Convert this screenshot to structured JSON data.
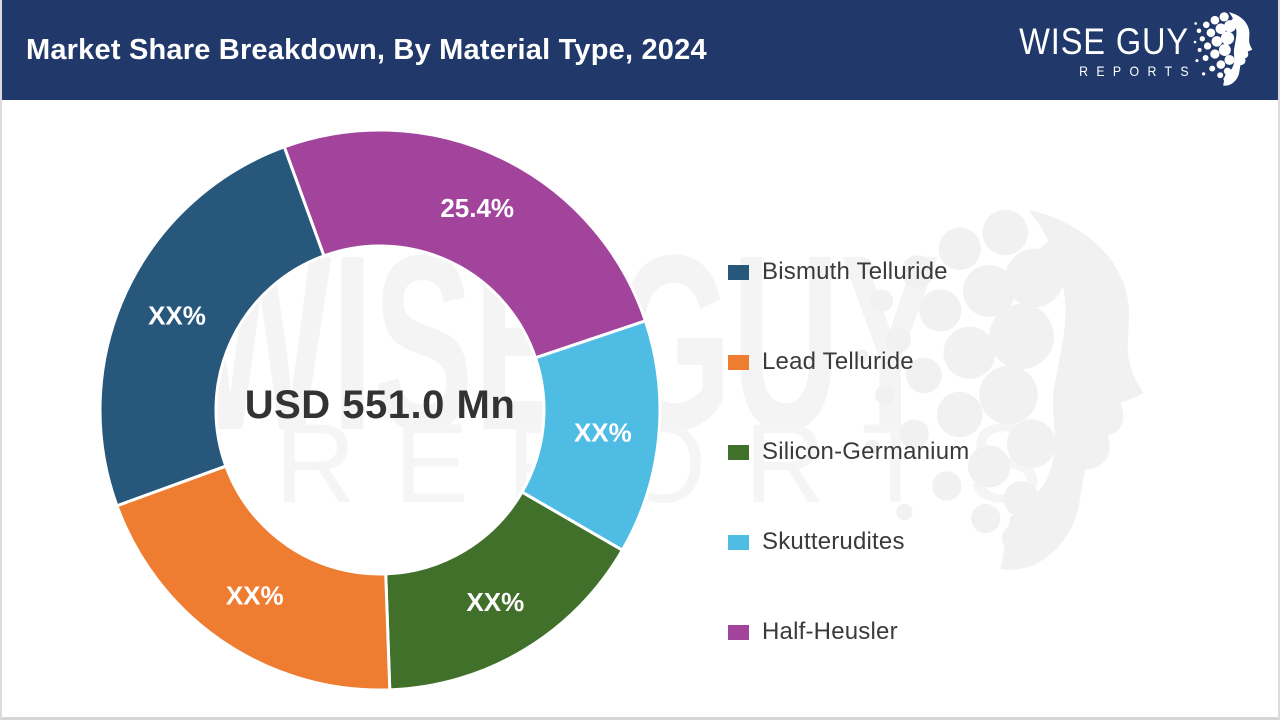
{
  "header": {
    "title": "Market Share Breakdown, By Material Type, 2024",
    "logo": {
      "name_top": "WISE GUY",
      "name_bottom": "REPORTS"
    }
  },
  "watermark": {
    "line1": "WISE GUY",
    "line2": "REPORTS"
  },
  "colors": {
    "header_bg": "#21386B",
    "border": "#D9D9D9",
    "center_text": "#333333",
    "legend_text": "#3A3A3A",
    "watermark": "#F4F4F4"
  },
  "chart_data": {
    "type": "pie",
    "variant": "donut",
    "title": "Market Share Breakdown, By Material Type, 2024",
    "center_label": "USD 551.0 Mn",
    "start_angle_deg": -20,
    "unit": "percent",
    "legend_position": "right",
    "segments": [
      {
        "label": "Half-Heusler",
        "value": 25.4,
        "display": "25.4%",
        "color": "#A2449C"
      },
      {
        "label": "Skutterudites",
        "value": 13.5,
        "display": "XX%",
        "color": "#4FBCE3"
      },
      {
        "label": "Silicon-Germanium",
        "value": 16.1,
        "display": "XX%",
        "color": "#41702B"
      },
      {
        "label": "Lead Telluride",
        "value": 20.0,
        "display": "XX%",
        "color": "#EE7D31"
      },
      {
        "label": "Bismuth Telluride",
        "value": 25.0,
        "display": "XX%",
        "color": "#27587C"
      }
    ],
    "legend": [
      {
        "label": "Bismuth Telluride",
        "color": "#27587C"
      },
      {
        "label": "Lead Telluride",
        "color": "#EE7D31"
      },
      {
        "label": "Silicon-Germanium",
        "color": "#41702B"
      },
      {
        "label": "Skutterudites",
        "color": "#4FBCE3"
      },
      {
        "label": "Half-Heusler",
        "color": "#A2449C"
      }
    ]
  }
}
